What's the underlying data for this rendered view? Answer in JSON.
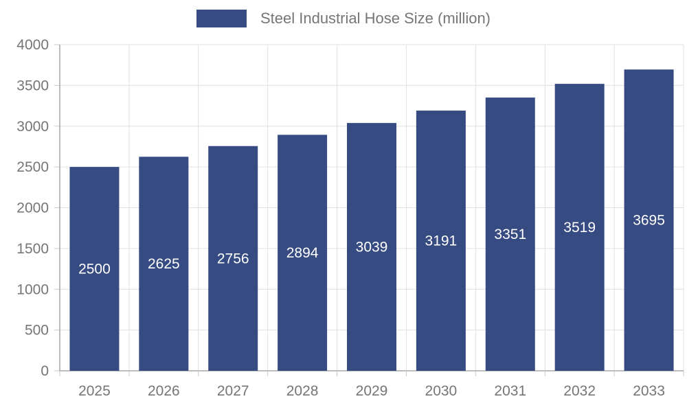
{
  "chart_data": {
    "type": "bar",
    "title": "Steel Industrial Hose Size (million)",
    "legend": {
      "label": "Steel Industrial Hose Size (million)",
      "position": "top"
    },
    "categories": [
      "2025",
      "2026",
      "2027",
      "2028",
      "2029",
      "2030",
      "2031",
      "2032",
      "2033"
    ],
    "values": [
      2500,
      2625,
      2756,
      2894,
      3039,
      3191,
      3351,
      3519,
      3695
    ],
    "xlabel": "",
    "ylabel": "",
    "ylim": [
      0,
      4000
    ],
    "yticks": [
      0,
      500,
      1000,
      1500,
      2000,
      2500,
      3000,
      3500,
      4000
    ],
    "grid": true,
    "legend_position": "top",
    "colors": {
      "bar": "#374b83",
      "axis_label": "#757575",
      "value_label": "#ffffff",
      "gridline": "#e0e0e0",
      "axis_line": "#a6a6a6",
      "tick_mark": "#c9c9c9",
      "background": "#ffffff"
    }
  }
}
